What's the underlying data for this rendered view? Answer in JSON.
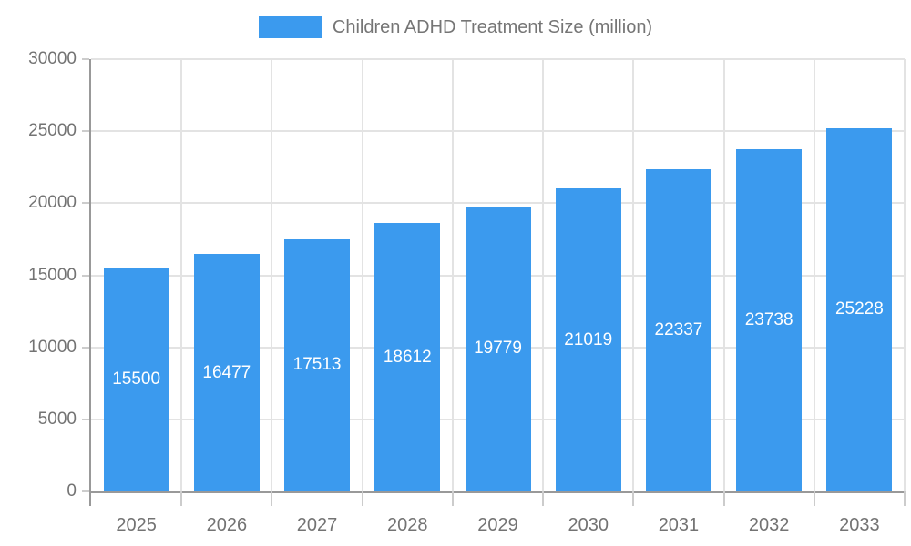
{
  "legend": {
    "label": "Children ADHD Treatment Size (million)"
  },
  "chart_data": {
    "type": "bar",
    "title": "",
    "categories": [
      "2025",
      "2026",
      "2027",
      "2028",
      "2029",
      "2030",
      "2031",
      "2032",
      "2033"
    ],
    "series": [
      {
        "name": "Children ADHD Treatment Size (million)",
        "values": [
          15500,
          16477,
          17513,
          18612,
          19779,
          21019,
          22337,
          23738,
          25228
        ]
      }
    ],
    "value_labels": [
      15500,
      16477,
      17513,
      18612,
      19779,
      21019,
      22337,
      23738,
      25228
    ],
    "xlabel": "",
    "ylabel": "",
    "ylim": [
      0,
      30000
    ],
    "yticks": [
      0,
      5000,
      10000,
      15000,
      20000,
      25000,
      30000
    ],
    "grid": "horizontal-and-vertical",
    "legend_position": "top-center",
    "value_label_position": "inside-center"
  },
  "colors": {
    "bar": "#3B9AEE",
    "axis": "#999999",
    "gridline": "#E3E3E3",
    "tick": "#CCCCCC",
    "axis_text": "#737373",
    "legend_text": "#757575",
    "bar_value_text": "#FFFFFF",
    "background": "#FFFFFF"
  }
}
